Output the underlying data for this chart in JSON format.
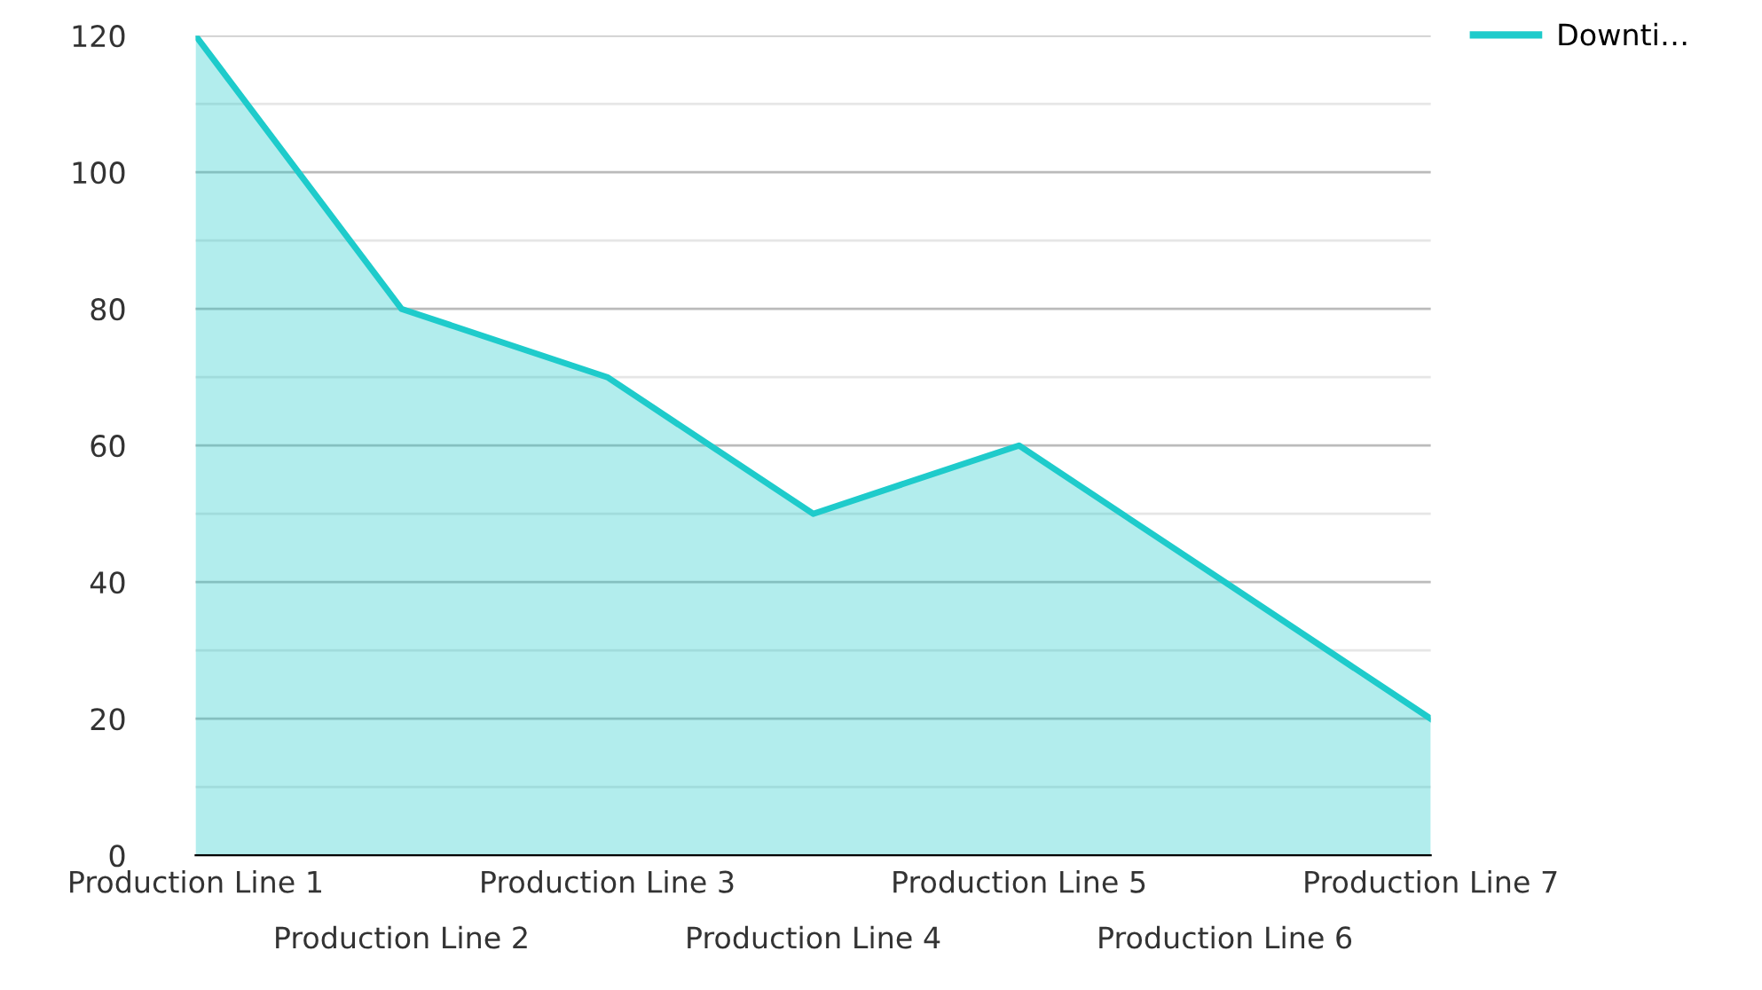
{
  "chart_data": {
    "type": "area",
    "categories": [
      "Production Line 1",
      "Production Line 2",
      "Production Line 3",
      "Production Line 4",
      "Production Line 5",
      "Production Line 6",
      "Production Line 7"
    ],
    "series": [
      {
        "name": "Downti…",
        "color": "#1ecbcb",
        "values": [
          120,
          80,
          70,
          50,
          60,
          40,
          20
        ]
      }
    ],
    "ylim": [
      0,
      120
    ],
    "yticks": [
      0,
      {
        "value": 10,
        "label": null
      },
      20,
      {
        "value": 30,
        "label": null
      },
      40,
      {
        "value": 50,
        "label": null
      },
      60,
      {
        "value": 70,
        "label": null
      },
      80,
      {
        "value": 90,
        "label": null
      },
      100,
      {
        "value": 110,
        "label": null
      },
      120
    ],
    "grid": "y",
    "legend": "top right"
  }
}
